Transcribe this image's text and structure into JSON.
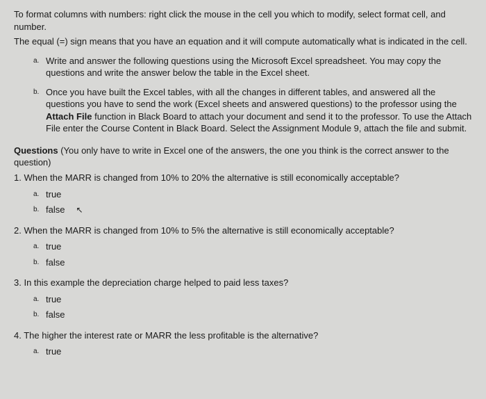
{
  "intro": {
    "p1": "To format columns with numbers: right click the mouse in the cell you which to modify, select format cell, and number.",
    "p2_pre": "The equal (=) sign means that you have an equation and it will compute automatically what is indicated in the cell."
  },
  "lettered": {
    "a": {
      "marker": "a.",
      "text": "Write and answer the following questions using the Microsoft Excel spreadsheet. You may copy the questions and write the answer below the table in the Excel sheet."
    },
    "b": {
      "marker": "b.",
      "text_pre": "Once you have built the Excel tables, with all the changes in different tables, and answered all the questions you have to send the work (Excel sheets and answered questions) to the professor using the ",
      "text_bold": "Attach File",
      "text_post": " function in Black Board to attach your document and send it to the professor. To use the Attach File enter the Course Content in Black Board. Select the Assignment Module 9, attach the file and submit."
    }
  },
  "questions_header": {
    "bold": "Questions",
    "rest": " (You only have to write in Excel one of the answers, the one you think is the correct answer to the question)"
  },
  "q1": {
    "text": "1. When the MARR is changed from 10% to 20% the alternative is still economically acceptable?",
    "a_marker": "a.",
    "a_text": "true",
    "b_marker": "b.",
    "b_text": "false"
  },
  "cursor_glyph": "↖",
  "q2": {
    "text": "2. When the MARR is changed from 10% to 5% the alternative is still economically acceptable?",
    "a_marker": "a.",
    "a_text": "true",
    "b_marker": "b.",
    "b_text": "false"
  },
  "q3": {
    "text": "3. In this example the depreciation charge helped to paid less taxes?",
    "a_marker": "a.",
    "a_text": "true",
    "b_marker": "b.",
    "b_text": "false"
  },
  "q4": {
    "text": "4. The higher the interest rate or MARR the less profitable is the alternative?",
    "a_marker": "a.",
    "a_text": "true"
  }
}
